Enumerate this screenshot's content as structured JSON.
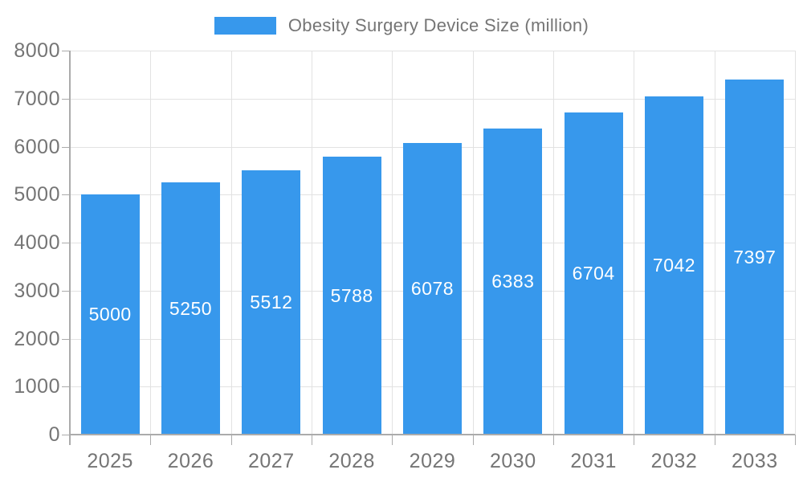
{
  "legend": {
    "label": "Obesity Surgery Device Size (million)"
  },
  "chart_data": {
    "type": "bar",
    "title": "Obesity Surgery Device Size (million)",
    "categories": [
      "2025",
      "2026",
      "2027",
      "2028",
      "2029",
      "2030",
      "2031",
      "2032",
      "2033"
    ],
    "series": [
      {
        "name": "Obesity Surgery Device Size (million)",
        "values": [
          5000,
          5250,
          5512,
          5788,
          6078,
          6383,
          6704,
          7042,
          7397
        ]
      }
    ],
    "xlabel": "",
    "ylabel": "",
    "ylim": [
      0,
      8000
    ],
    "yticks": [
      0,
      1000,
      2000,
      3000,
      4000,
      5000,
      6000,
      7000,
      8000
    ],
    "grid": true,
    "legend_position": "top",
    "bar_value_labels": "inside-center"
  },
  "colors": {
    "bar": "#3798EC",
    "grid_line": "#e2e2e2",
    "axis_line": "#ababab",
    "tick_line": "#ababab",
    "axis_text": "#757575",
    "legend_text": "#757575",
    "bar_label_text": "#ffffff",
    "background": "#ffffff"
  }
}
